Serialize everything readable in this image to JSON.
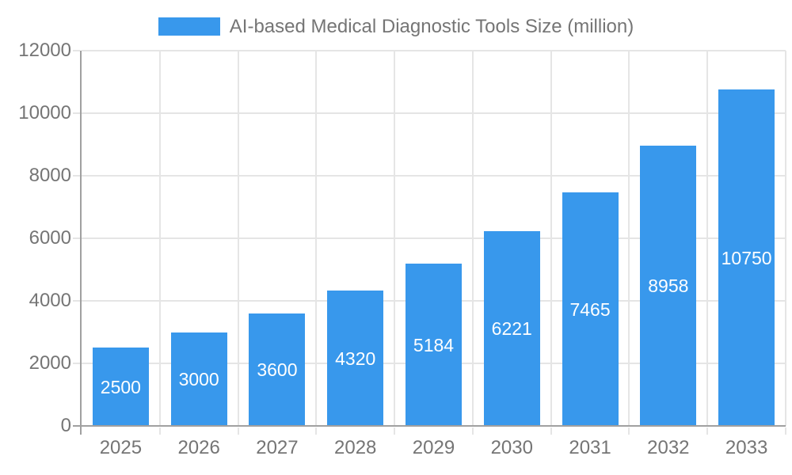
{
  "chart_data": {
    "type": "bar",
    "title": "",
    "legend": "AI-based Medical Diagnostic Tools Size (million)",
    "legend_position": "top",
    "categories": [
      "2025",
      "2026",
      "2027",
      "2028",
      "2029",
      "2030",
      "2031",
      "2032",
      "2033"
    ],
    "values": [
      2500,
      3000,
      3600,
      4320,
      5184,
      6221,
      7465,
      8958,
      10750
    ],
    "xlabel": "",
    "ylabel": "",
    "ylim": [
      0,
      12000
    ],
    "ytick_step": 2000,
    "ytick_labels": [
      "0",
      "2000",
      "4000",
      "6000",
      "8000",
      "10000",
      "12000"
    ],
    "grid": true,
    "bar_labels_shown": true
  },
  "colors": {
    "bar": "#3898ec",
    "bar_label_text": "#ffffff",
    "gridline": "#e5e5e5",
    "axis_line": "#a0a0a0",
    "tick_text": "#757575",
    "legend_text": "#757575",
    "background": "#ffffff"
  }
}
